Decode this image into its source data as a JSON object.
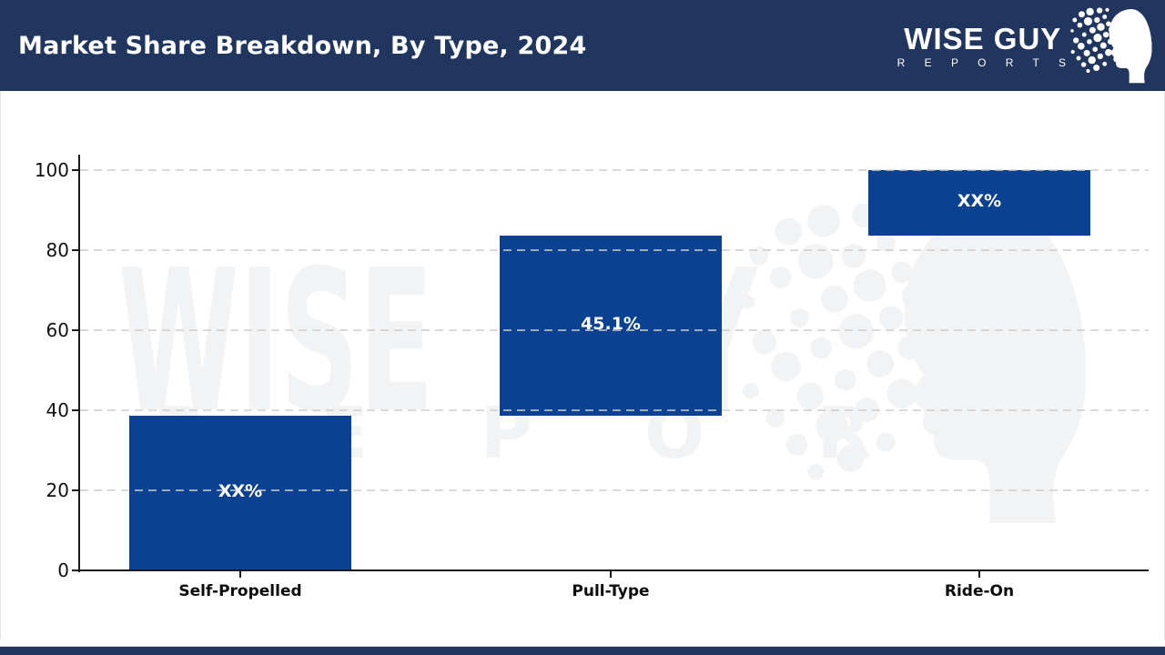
{
  "header": {
    "title": "Market Share Breakdown, By Type, 2024",
    "logo": {
      "line1": "WISE GUY",
      "line2": "R E P O R T S"
    }
  },
  "watermark": {
    "word1": "WISE",
    "word2": "GUY",
    "word3": "R E P O R T S"
  },
  "chart_data": {
    "type": "bar",
    "subtype": "stacked-waterfall-column",
    "title": "Market Share Breakdown, By Type, 2024",
    "categories": [
      "Self-Propelled",
      "Pull-Type",
      "Ride-On"
    ],
    "segments": [
      {
        "category": "Self-Propelled",
        "start": 0,
        "end": 38.6,
        "value_label": "XX%"
      },
      {
        "category": "Pull-Type",
        "start": 38.6,
        "end": 83.7,
        "value_label": "45.1%"
      },
      {
        "category": "Ride-On",
        "start": 83.7,
        "end": 100,
        "value_label": "XX%"
      }
    ],
    "ylim": [
      0,
      100
    ],
    "yticks": [
      0,
      20,
      40,
      60,
      80,
      100
    ],
    "grid": "dashed-horizontal",
    "legend": "none"
  },
  "colors": {
    "header_bg": "#21365F",
    "footer_bg": "#21365F",
    "bar": "#0A4190",
    "grid": "#D9D9D9",
    "axis": "#1A1A1A",
    "bar_label": "#FFFFFF",
    "watermark": "#F2F3F5"
  }
}
